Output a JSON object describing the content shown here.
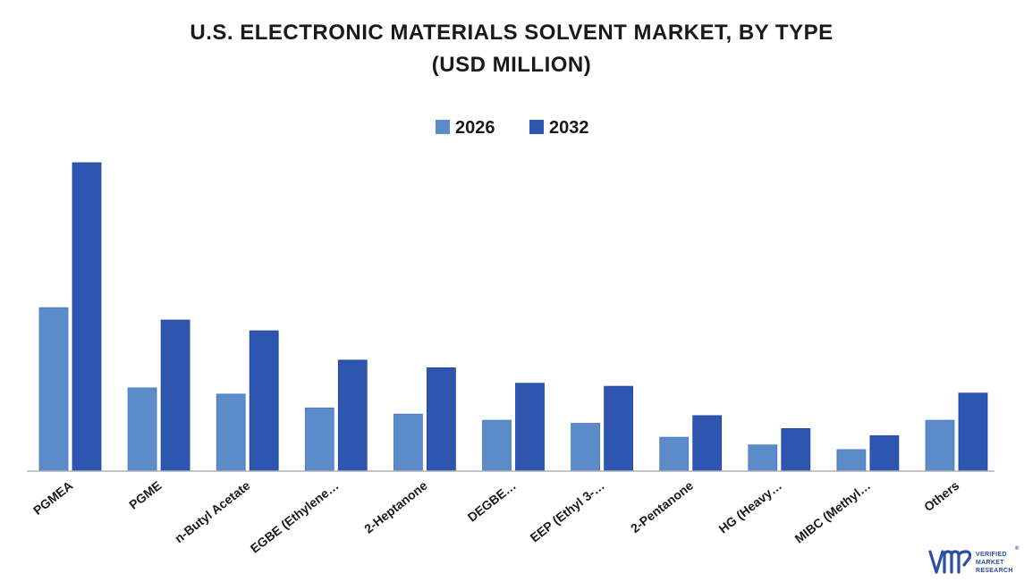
{
  "chart_data": {
    "type": "bar",
    "title": "U.S. ELECTRONIC MATERIALS SOLVENT MARKET, BY TYPE",
    "subtitle": "(USD MILLION)",
    "xlabel": "",
    "ylabel": "",
    "categories": [
      "PGMEA",
      "PGME",
      "n-Butyl Acetate",
      "EGBE (Ethylene…",
      "2-Heptanone",
      "DEGBE…",
      "EEP (Ethyl 3-…",
      "2-Pentanone",
      "HG (Heavy…",
      "MIBC (Methyl…",
      "Others"
    ],
    "series": [
      {
        "name": "2026",
        "color": "#5b8bc9",
        "values": [
          53,
          27,
          25,
          20.5,
          18.5,
          16.5,
          15.5,
          11,
          8.5,
          7,
          16.5
        ]
      },
      {
        "name": "2032",
        "color": "#2e56b0",
        "values": [
          100,
          49,
          45.5,
          36,
          33.5,
          28.5,
          27.5,
          18,
          13.8,
          11.5,
          25.3
        ]
      }
    ],
    "ylim": [
      0,
      100
    ],
    "grid": false,
    "legend_position": "top-center",
    "y_axis_visible": false
  },
  "logo": {
    "brand": "VERIFIED MARKET RESEARCH",
    "lines": [
      "VERIFIED",
      "MARKET",
      "RESEARCH"
    ],
    "registered": "®",
    "color": "#2b4fa8"
  }
}
